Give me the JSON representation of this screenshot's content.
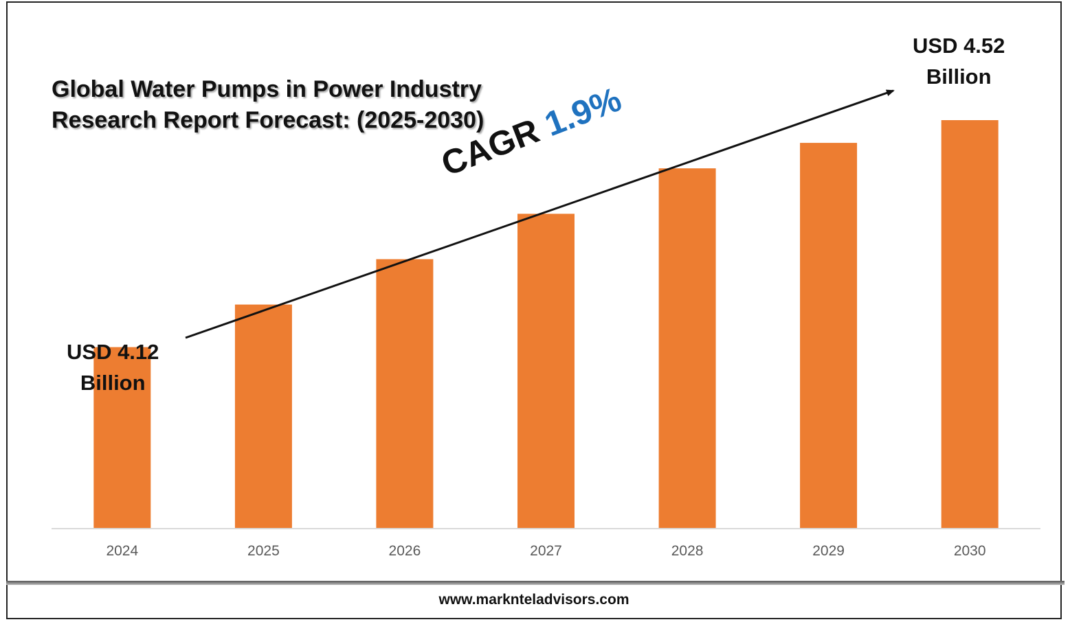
{
  "chart_data": {
    "type": "bar",
    "title": "Global Water Pumps in Power Industry Research Report Forecast: (2025-2030)",
    "title_lines": [
      "Global Water Pumps in Power Industry",
      "Research Report Forecast: (2025-2030)"
    ],
    "categories": [
      "2024",
      "2025",
      "2026",
      "2027",
      "2028",
      "2029",
      "2030"
    ],
    "values": [
      4.12,
      4.195,
      4.275,
      4.355,
      4.435,
      4.48,
      4.52
    ],
    "unit": "USD Billion",
    "bar_color": "#ed7d31",
    "annotations": {
      "start_line1": "USD 4.12",
      "start_line2": "Billion",
      "end_line1": "USD 4.52",
      "end_line2": "Billion",
      "cagr_label": "CAGR",
      "cagr_value": "1.9%",
      "cagr_color": "#1f72bf"
    },
    "grid": false,
    "legend": "none"
  },
  "footer": {
    "website": "www.marknteladvisors.com"
  }
}
